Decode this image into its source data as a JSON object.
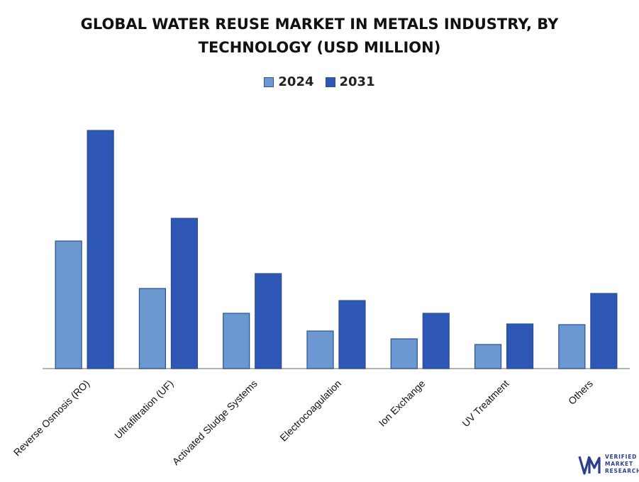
{
  "chart_data": {
    "type": "bar",
    "title_lines": [
      "GLOBAL WATER REUSE MARKET IN METALS INDUSTRY, BY",
      "TECHNOLOGY (USD MILLION)"
    ],
    "categories": [
      "Reverse Osmosis (RO)",
      "Ultrafiltration (UF)",
      "Activated Sludge Systems",
      "Electrocoagulation",
      "Ion Exchange",
      "UV Treatment",
      "Others"
    ],
    "series": [
      {
        "name": "2024",
        "values": [
          180,
          113,
          78,
          53,
          42,
          34,
          62
        ],
        "color": "#6b98d0"
      },
      {
        "name": "2031",
        "values": [
          336,
          212,
          134,
          96,
          78,
          63,
          106
        ],
        "color": "#2e57b5"
      }
    ],
    "ylim": [
      0,
      360
    ],
    "grid": false,
    "legend_position": "top-center",
    "xlabel": "",
    "ylabel": ""
  },
  "logo": {
    "lines": [
      "VERIFIED",
      "MARKET",
      "RESEARCH"
    ],
    "mark": "VM",
    "color": "#2a3f8f"
  }
}
